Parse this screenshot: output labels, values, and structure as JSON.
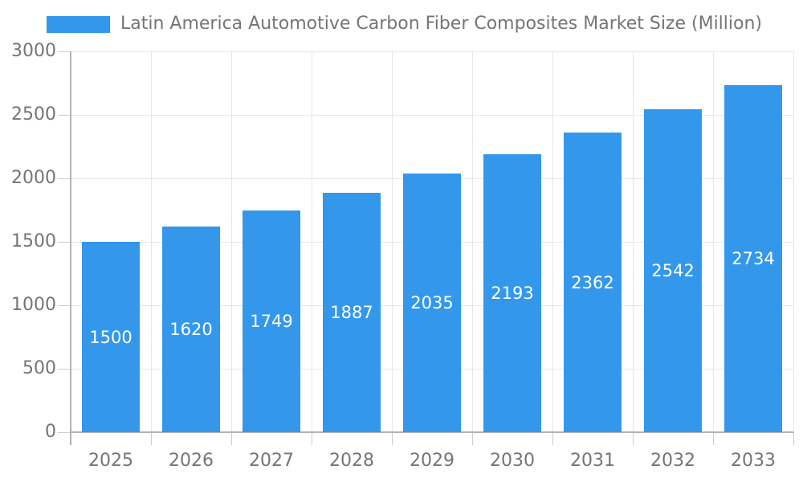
{
  "chart_data": {
    "type": "bar",
    "title": "Latin America Automotive Carbon Fiber Composites Market Size (Million)",
    "legend_entries": [
      "Latin America Automotive Carbon Fiber Composites Market Size (Million)"
    ],
    "legend_position": "top-left",
    "categories": [
      "2025",
      "2026",
      "2027",
      "2028",
      "2029",
      "2030",
      "2031",
      "2032",
      "2033"
    ],
    "values": [
      1500,
      1620,
      1749,
      1887,
      2035,
      2193,
      2362,
      2542,
      2734
    ],
    "xlabel": "",
    "ylabel": "",
    "ylim": [
      0,
      3000
    ],
    "yticks": [
      0,
      500,
      1000,
      1500,
      2000,
      2500,
      3000
    ],
    "grid": true,
    "colors": {
      "bar": "#3398ec",
      "bar_value_label": "#ffffff",
      "axis_text": "#757575",
      "gridline": "#e7e7e7",
      "axis_line": "#b3b3b3",
      "tick": "#cccccc",
      "background": "#ffffff"
    }
  }
}
